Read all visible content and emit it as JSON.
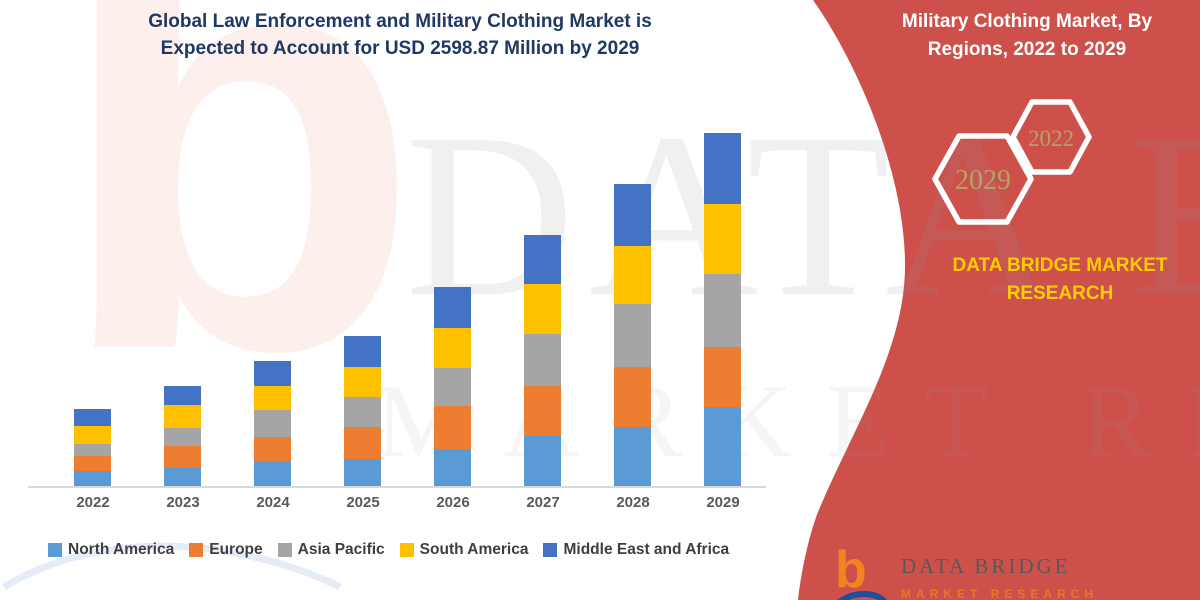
{
  "header": {
    "title_line1": "Global Law Enforcement and Military Clothing Market is",
    "title_line2": "Expected to Account for USD 2598.87 Million by 2029"
  },
  "side_panel": {
    "title_line1": "Military Clothing Market, By",
    "title_line2": "Regions, 2022 to 2029",
    "hexagon_back_label": "2029",
    "hexagon_front_label": "2022",
    "brand_line1": "DATA BRIDGE MARKET",
    "brand_line2": "RESEARCH"
  },
  "footer_logo": {
    "brand": "DATA BRIDGE",
    "sub": "MARKET RESEARCH"
  },
  "watermark": {
    "big_text": "DATA BRIDGE",
    "small_text": "MARKET RESEARCH",
    "letter": "b"
  },
  "theme": {
    "panel_red": "#cd504b",
    "headline_navy": "#1f3864",
    "brand_yellow": "#ffcc00",
    "hexagon_label_olive": "#b3a366",
    "axis_label_gray": "#595959"
  },
  "chart_data": {
    "type": "bar",
    "stacked": true,
    "title": "Global Law Enforcement and Military Clothing Market is Expected to Account for USD 2598.87 Million by 2029",
    "unit": "USD Million",
    "categories": [
      "2022",
      "2023",
      "2024",
      "2025",
      "2026",
      "2027",
      "2028",
      "2029"
    ],
    "series": [
      {
        "name": "North America",
        "color": "#5b9bd5",
        "values": [
          120,
          142,
          185,
          204,
          283,
          374,
          443,
          585.87
        ]
      },
      {
        "name": "Europe",
        "color": "#ed7d31",
        "values": [
          111,
          160,
          179,
          238,
          310,
          369,
          439,
          443
        ]
      },
      {
        "name": "Asia Pacific",
        "color": "#a5a5a5",
        "values": [
          86,
          131,
          204,
          221,
          283,
          382,
          460,
          537
        ]
      },
      {
        "name": "South America",
        "color": "#ffc000",
        "values": [
          130,
          170,
          177,
          221,
          292,
          364,
          426,
          514
        ]
      },
      {
        "name": "Middle East and Africa",
        "color": "#4472c4",
        "values": [
          128,
          137,
          177,
          224,
          303,
          364,
          460,
          519
        ]
      }
    ],
    "totals": [
      575,
      740,
      922,
      1108,
      1471,
      1853,
      2228,
      2598.87
    ],
    "xlabel": "",
    "ylabel": "",
    "ylim": [
      0,
      2700
    ],
    "gridlines": false,
    "y_axis_visible": false,
    "legend_position": "bottom"
  }
}
